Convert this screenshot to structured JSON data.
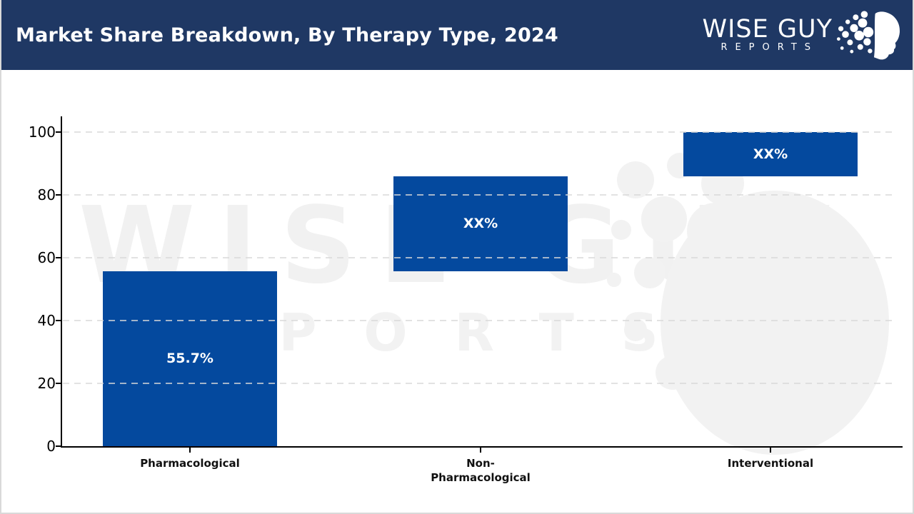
{
  "header": {
    "title": "Market Share Breakdown, By Therapy Type, 2024",
    "logo": {
      "line1": "WISE GUY",
      "line2": "REPORTS"
    }
  },
  "watermark": {
    "line1": "WISE GUY",
    "line2": "REPORTS"
  },
  "chart_data": {
    "type": "bar",
    "subtype": "cumulative-waterfall",
    "title": "Market Share Breakdown, By Therapy Type, 2024",
    "xlabel": "",
    "ylabel": "",
    "ylim": [
      0,
      100
    ],
    "yticks": [
      0,
      20,
      40,
      60,
      80,
      100
    ],
    "grid": "horizontal-dashed",
    "legend": "none",
    "bar_color": "#04499e",
    "label_color": "#ffffff",
    "categories": [
      "Pharmacological",
      "Non-Pharmacological",
      "Interventional"
    ],
    "category_display_lines": [
      [
        "Pharmacological"
      ],
      [
        "Non-",
        "Pharmacological"
      ],
      [
        "Interventional"
      ]
    ],
    "segments": [
      {
        "category": "Pharmacological",
        "start": 0,
        "end": 55.7,
        "label": "55.7%"
      },
      {
        "category": "Non-Pharmacological",
        "start": 55.7,
        "end": 86,
        "label": "XX%"
      },
      {
        "category": "Interventional",
        "start": 86,
        "end": 100,
        "label": "XX%"
      }
    ]
  },
  "colors": {
    "header_bg": "#1f3864",
    "bar_blue": "#04499e",
    "gridline": "#d9d9d9",
    "axis": "#000000",
    "watermark": "#f1f1f1",
    "page_border": "#d9d9d9"
  }
}
